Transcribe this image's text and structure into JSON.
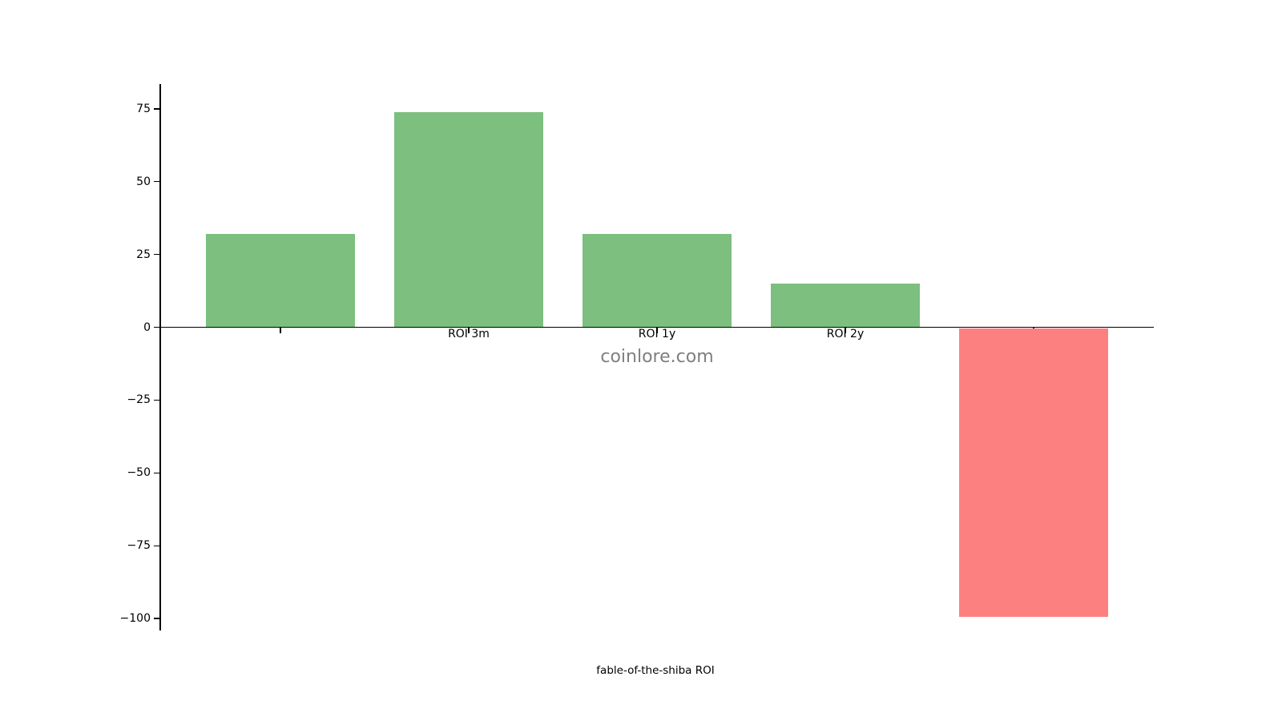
{
  "watermark": "coinlore.com",
  "chart_data": {
    "type": "bar",
    "title": "fable-of-the-shiba ROI",
    "xlabel": "",
    "ylabel": "",
    "categories": [
      "",
      "ROI 3m",
      "ROI 1y",
      "ROI 2y",
      ""
    ],
    "values": [
      32,
      74,
      32,
      15,
      -99
    ],
    "series": [
      {
        "name": "fable-of-the-shiba ROI",
        "values": [
          32,
          74,
          32,
          15,
          -99
        ]
      }
    ],
    "yticks": [
      75,
      50,
      25,
      0,
      -25,
      -50,
      -75,
      -100
    ],
    "ylim": [
      -104,
      83.5
    ],
    "grid": false,
    "legend_position": "none",
    "positive_color": "#7cbf7f",
    "negative_color": "#fd8080",
    "axis_color": "#000000",
    "watermark": "coinlore.com",
    "watermark_color": "#7f7f7f"
  }
}
